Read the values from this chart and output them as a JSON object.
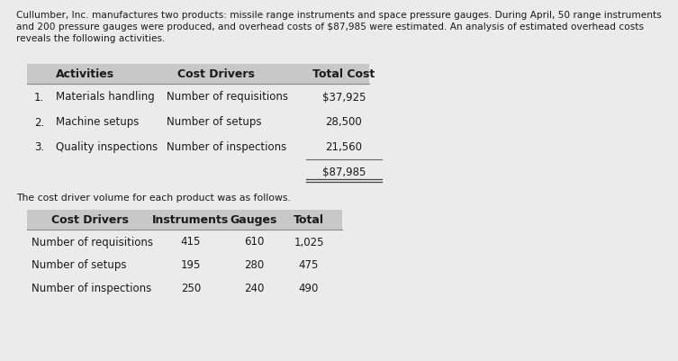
{
  "intro_text_lines": [
    "Cullumber, Inc. manufactures two products: missile range instruments and space pressure gauges. During April, 50 range instruments",
    "and 200 pressure gauges were produced, and overhead costs of $87,985 were estimated. An analysis of estimated overhead costs",
    "reveals the following activities."
  ],
  "table1_headers": [
    "Activities",
    "Cost Drivers",
    "Total Cost"
  ],
  "table1_rows": [
    [
      "1.",
      "Materials handling",
      "Number of requisitions",
      "$37,925"
    ],
    [
      "2.",
      "Machine setups",
      "Number of setups",
      "28,500"
    ],
    [
      "3.",
      "Quality inspections",
      "Number of inspections",
      "21,560"
    ]
  ],
  "table1_total": "$87,985",
  "middle_text": "The cost driver volume for each product was as follows.",
  "table2_headers": [
    "Cost Drivers",
    "Instruments",
    "Gauges",
    "Total"
  ],
  "table2_rows": [
    [
      "Number of requisitions",
      "415",
      "610",
      "1,025"
    ],
    [
      "Number of setups",
      "195",
      "280",
      "475"
    ],
    [
      "Number of inspections",
      "250",
      "240",
      "490"
    ]
  ],
  "bg_color": "#ebebeb",
  "table_header_bg": "#c8c8c8",
  "text_color": "#1a1a1a",
  "font_size": 8.5,
  "header_font_size": 9.0
}
